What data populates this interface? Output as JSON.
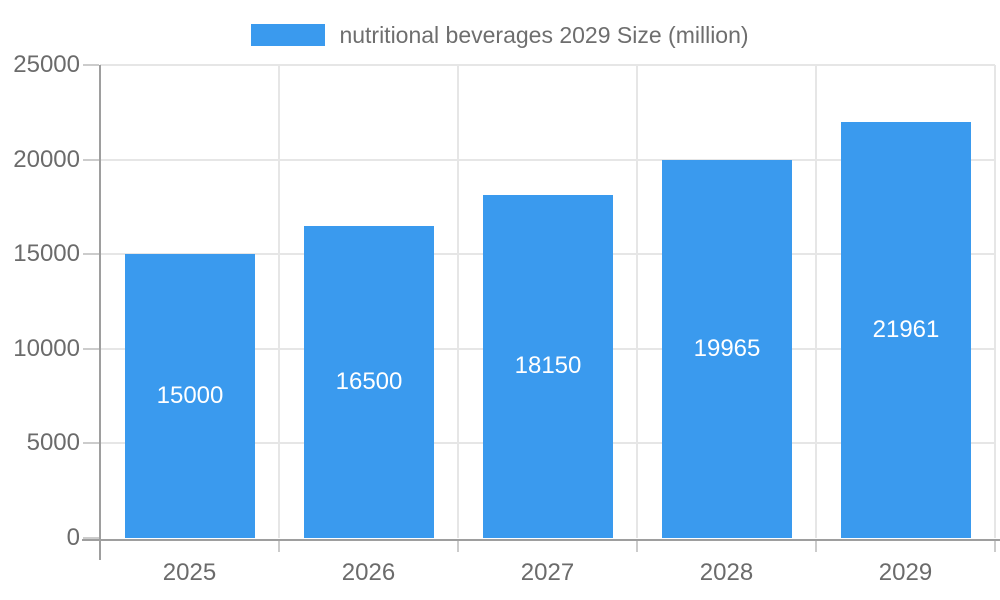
{
  "chart": {
    "legend": {
      "label": "nutritional beverages 2029 Size (million)"
    },
    "colors": {
      "bar": "#3a9aee",
      "bar_label": "#ffffff",
      "axis_text": "#6b6b6b",
      "legend_text": "#6e6e6e",
      "grid": "#e6e6e6",
      "tick": "#cccccc",
      "axis_line": "#9e9e9e",
      "background": "#ffffff"
    }
  },
  "chart_data": {
    "type": "bar",
    "title": "",
    "xlabel": "",
    "ylabel": "",
    "categories": [
      "2025",
      "2026",
      "2027",
      "2028",
      "2029"
    ],
    "series": [
      {
        "name": "nutritional beverages 2029 Size (million)",
        "values": [
          15000,
          16500,
          18150,
          19965,
          21961
        ]
      }
    ],
    "bar_value_labels": [
      "15000",
      "16500",
      "18150",
      "19965",
      "21961"
    ],
    "ylim": [
      0,
      25000
    ],
    "yticks": [
      0,
      5000,
      10000,
      15000,
      20000,
      25000
    ],
    "ytick_labels": [
      "0",
      "5000",
      "10000",
      "15000",
      "20000",
      "25000"
    ],
    "grid": true,
    "legend_position": "top",
    "value_label_position": "inside-center"
  }
}
